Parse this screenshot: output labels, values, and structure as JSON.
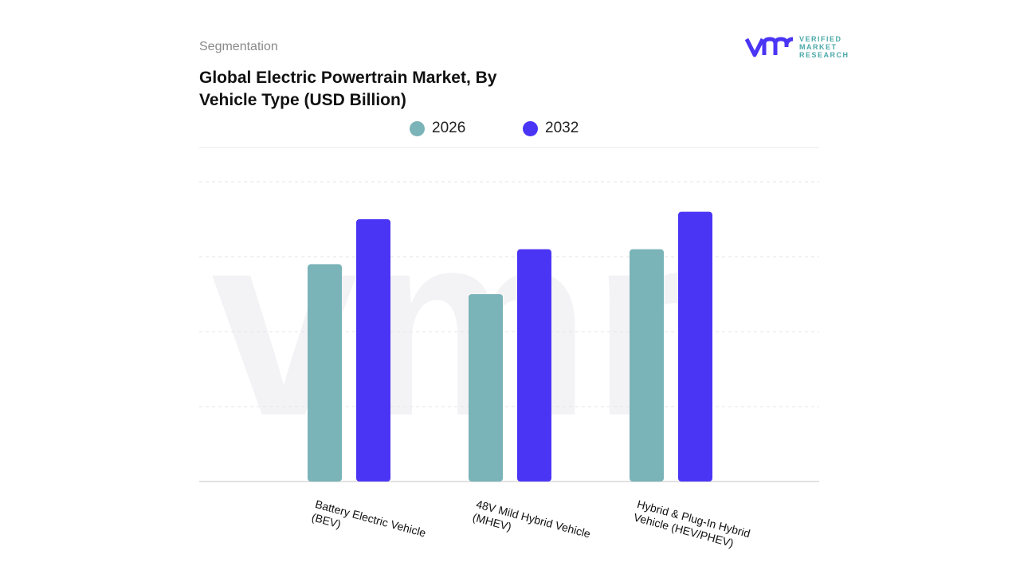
{
  "header": {
    "segment": "Segmentation",
    "title": "Global Electric Powertrain Market, By Vehicle Type (USD Billion)"
  },
  "logo": {
    "mark": "vmr",
    "line1": "VERIFIED",
    "line2": "MARKET",
    "line3": "RESEARCH",
    "alt": "Verified Market Research"
  },
  "colors": {
    "series_2026": "#7ab3b8",
    "series_2032": "#4b35f5"
  },
  "chart_data": {
    "type": "bar",
    "title": "Global Electric Powertrain Market, By Vehicle Type (USD Billion)",
    "categories": [
      "Battery Electric Vehicle (BEV)",
      "48V Mild Hybrid Vehicle (MHEV)",
      "Hybrid & Plug-In Hybrid Vehicle (HEV/PHEV)"
    ],
    "series": [
      {
        "name": "2026",
        "color": "#7ab3b8",
        "values": [
          2.9,
          2.5,
          3.1
        ]
      },
      {
        "name": "2032",
        "color": "#4b35f5",
        "values": [
          3.5,
          3.1,
          3.6
        ]
      }
    ],
    "ylim": [
      0,
      4
    ],
    "y_tick_labels_shown": false,
    "grid": true,
    "legend": "top-center"
  }
}
